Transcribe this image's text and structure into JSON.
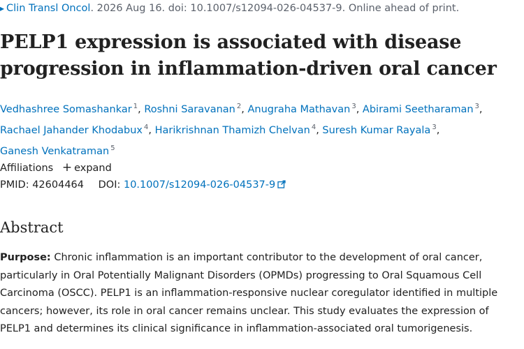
{
  "citation": {
    "journal": "Clin Transl Oncol",
    "details": ". 2026 Aug 16. doi: 10.1007/s12094-026-04537-9. Online ahead of print."
  },
  "title": "PELP1 expression is associated with disease progression in inflammation-driven oral cancer",
  "authors": [
    {
      "name": "Vedhashree Somashankar",
      "aff": "1"
    },
    {
      "name": "Roshni Saravanan",
      "aff": "2"
    },
    {
      "name": "Anugraha Mathavan",
      "aff": "3"
    },
    {
      "name": "Abirami Seetharaman",
      "aff": "3"
    },
    {
      "name": "Rachael Jahander Khodabux",
      "aff": "4"
    },
    {
      "name": "Harikrishnan Thamizh Chelvan",
      "aff": "4"
    },
    {
      "name": "Suresh Kumar Rayala",
      "aff": "3"
    },
    {
      "name": "Ganesh Venkatraman",
      "aff": "5"
    }
  ],
  "affiliations": {
    "label": "Affiliations",
    "expand_label": "expand"
  },
  "identifiers": {
    "pmid_label": "PMID:",
    "pmid": "42604464",
    "doi_label": "DOI:",
    "doi": "10.1007/s12094-026-04537-9"
  },
  "abstract": {
    "heading": "Abstract",
    "purpose_label": "Purpose:",
    "purpose_text": " Chronic inflammation is an important contributor to the development of oral cancer, particularly in Oral Potentially Malignant Disorders (OPMDs) progressing to Oral Squamous Cell Carcinoma (OSCC). PELP1 is an inflammation-responsive nuclear coregulator identified in multiple cancers; however, its role in oral cancer remains unclear. This study evaluates the expression of PELP1 and determines its clinical significance in inflammation-associated oral tumorigenesis."
  },
  "colors": {
    "link": "#0071bc",
    "text": "#212121",
    "muted": "#5b616b"
  },
  "icons": {
    "citation_arrow": "arrow-icon",
    "expand": "plus-icon",
    "external_link": "external-link-icon"
  }
}
